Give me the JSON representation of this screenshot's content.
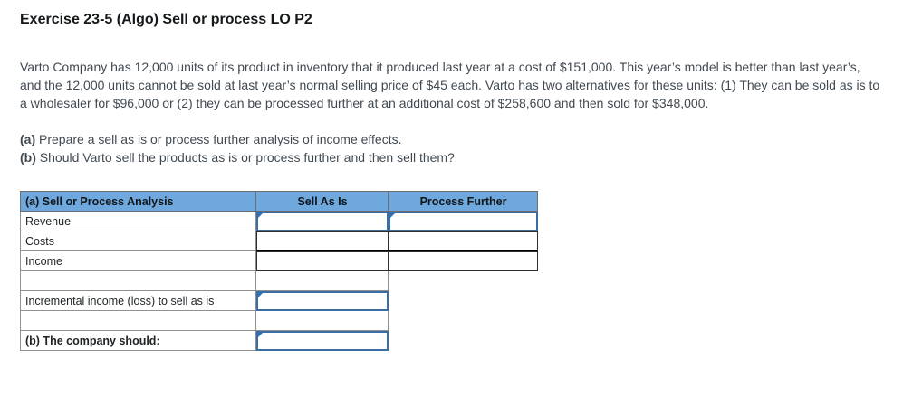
{
  "page": {
    "title": "Exercise 23-5 (Algo) Sell or process LO P2",
    "intro": "Varto Company has 12,000 units of its product in inventory that it produced last year at a cost of $151,000. This year’s model is better than last year’s, and the 12,000 units cannot be sold at last year’s normal selling price of $45 each. Varto has two alternatives for these units: (1) They can be sold as is to a wholesaler for $96,000 or (2) they can be processed further at an additional cost of $258,600 and then sold for $348,000.",
    "requirements": [
      {
        "label": "(a)",
        "text": "Prepare a sell as is or process further analysis of income effects."
      },
      {
        "label": "(b)",
        "text": "Should Varto sell the products as is or process further and then sell them?"
      }
    ]
  },
  "worksheet": {
    "header": {
      "col1": "(a) Sell or Process Analysis",
      "col2": "Sell As Is",
      "col3": "Process Further"
    },
    "rows": {
      "revenue": "Revenue",
      "costs": "Costs",
      "income": "Income",
      "incremental": "Incremental income (loss) to sell as is",
      "decision": "(b) The company should:"
    },
    "inputs": {
      "revenue_sell": "",
      "revenue_process": "",
      "costs_sell": "",
      "costs_process": "",
      "income_sell": "",
      "income_process": "",
      "incremental_value": "",
      "decision_value": ""
    },
    "colors": {
      "header_bg": "#6FA8DC",
      "input_border": "#3A6DA3",
      "marker": "#2F6FB4",
      "grid": "#909090"
    }
  }
}
